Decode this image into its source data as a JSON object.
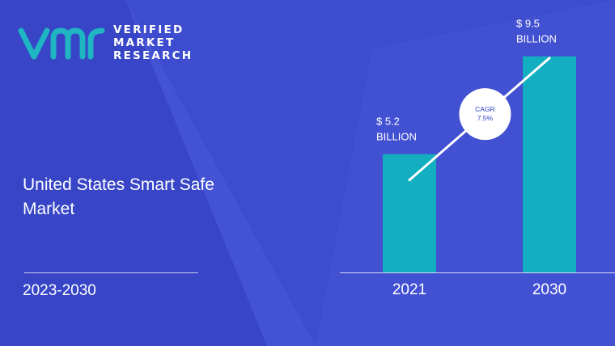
{
  "brand": {
    "lines": [
      "VERIFIED",
      "MARKET",
      "RESEARCH"
    ],
    "colors": {
      "accent": "#1fb5c2",
      "background": "#3e4ccf",
      "bar": "#13aec0"
    }
  },
  "report": {
    "title": "United States Smart Safe Market",
    "period": "2023-2030"
  },
  "chart_data": {
    "type": "bar",
    "title": "",
    "xlabel": "",
    "ylabel": "",
    "categories": [
      "2021",
      "2030"
    ],
    "values": [
      5.2,
      9.5
    ],
    "value_labels": [
      [
        "$ 5.2",
        "BILLION"
      ],
      [
        "$ 9.5",
        "BILLION"
      ]
    ],
    "unit": "USD billion",
    "ylim": [
      0,
      10.2
    ],
    "grid": false,
    "annotation": {
      "lines": [
        "CAGR",
        "7.5%"
      ]
    }
  }
}
